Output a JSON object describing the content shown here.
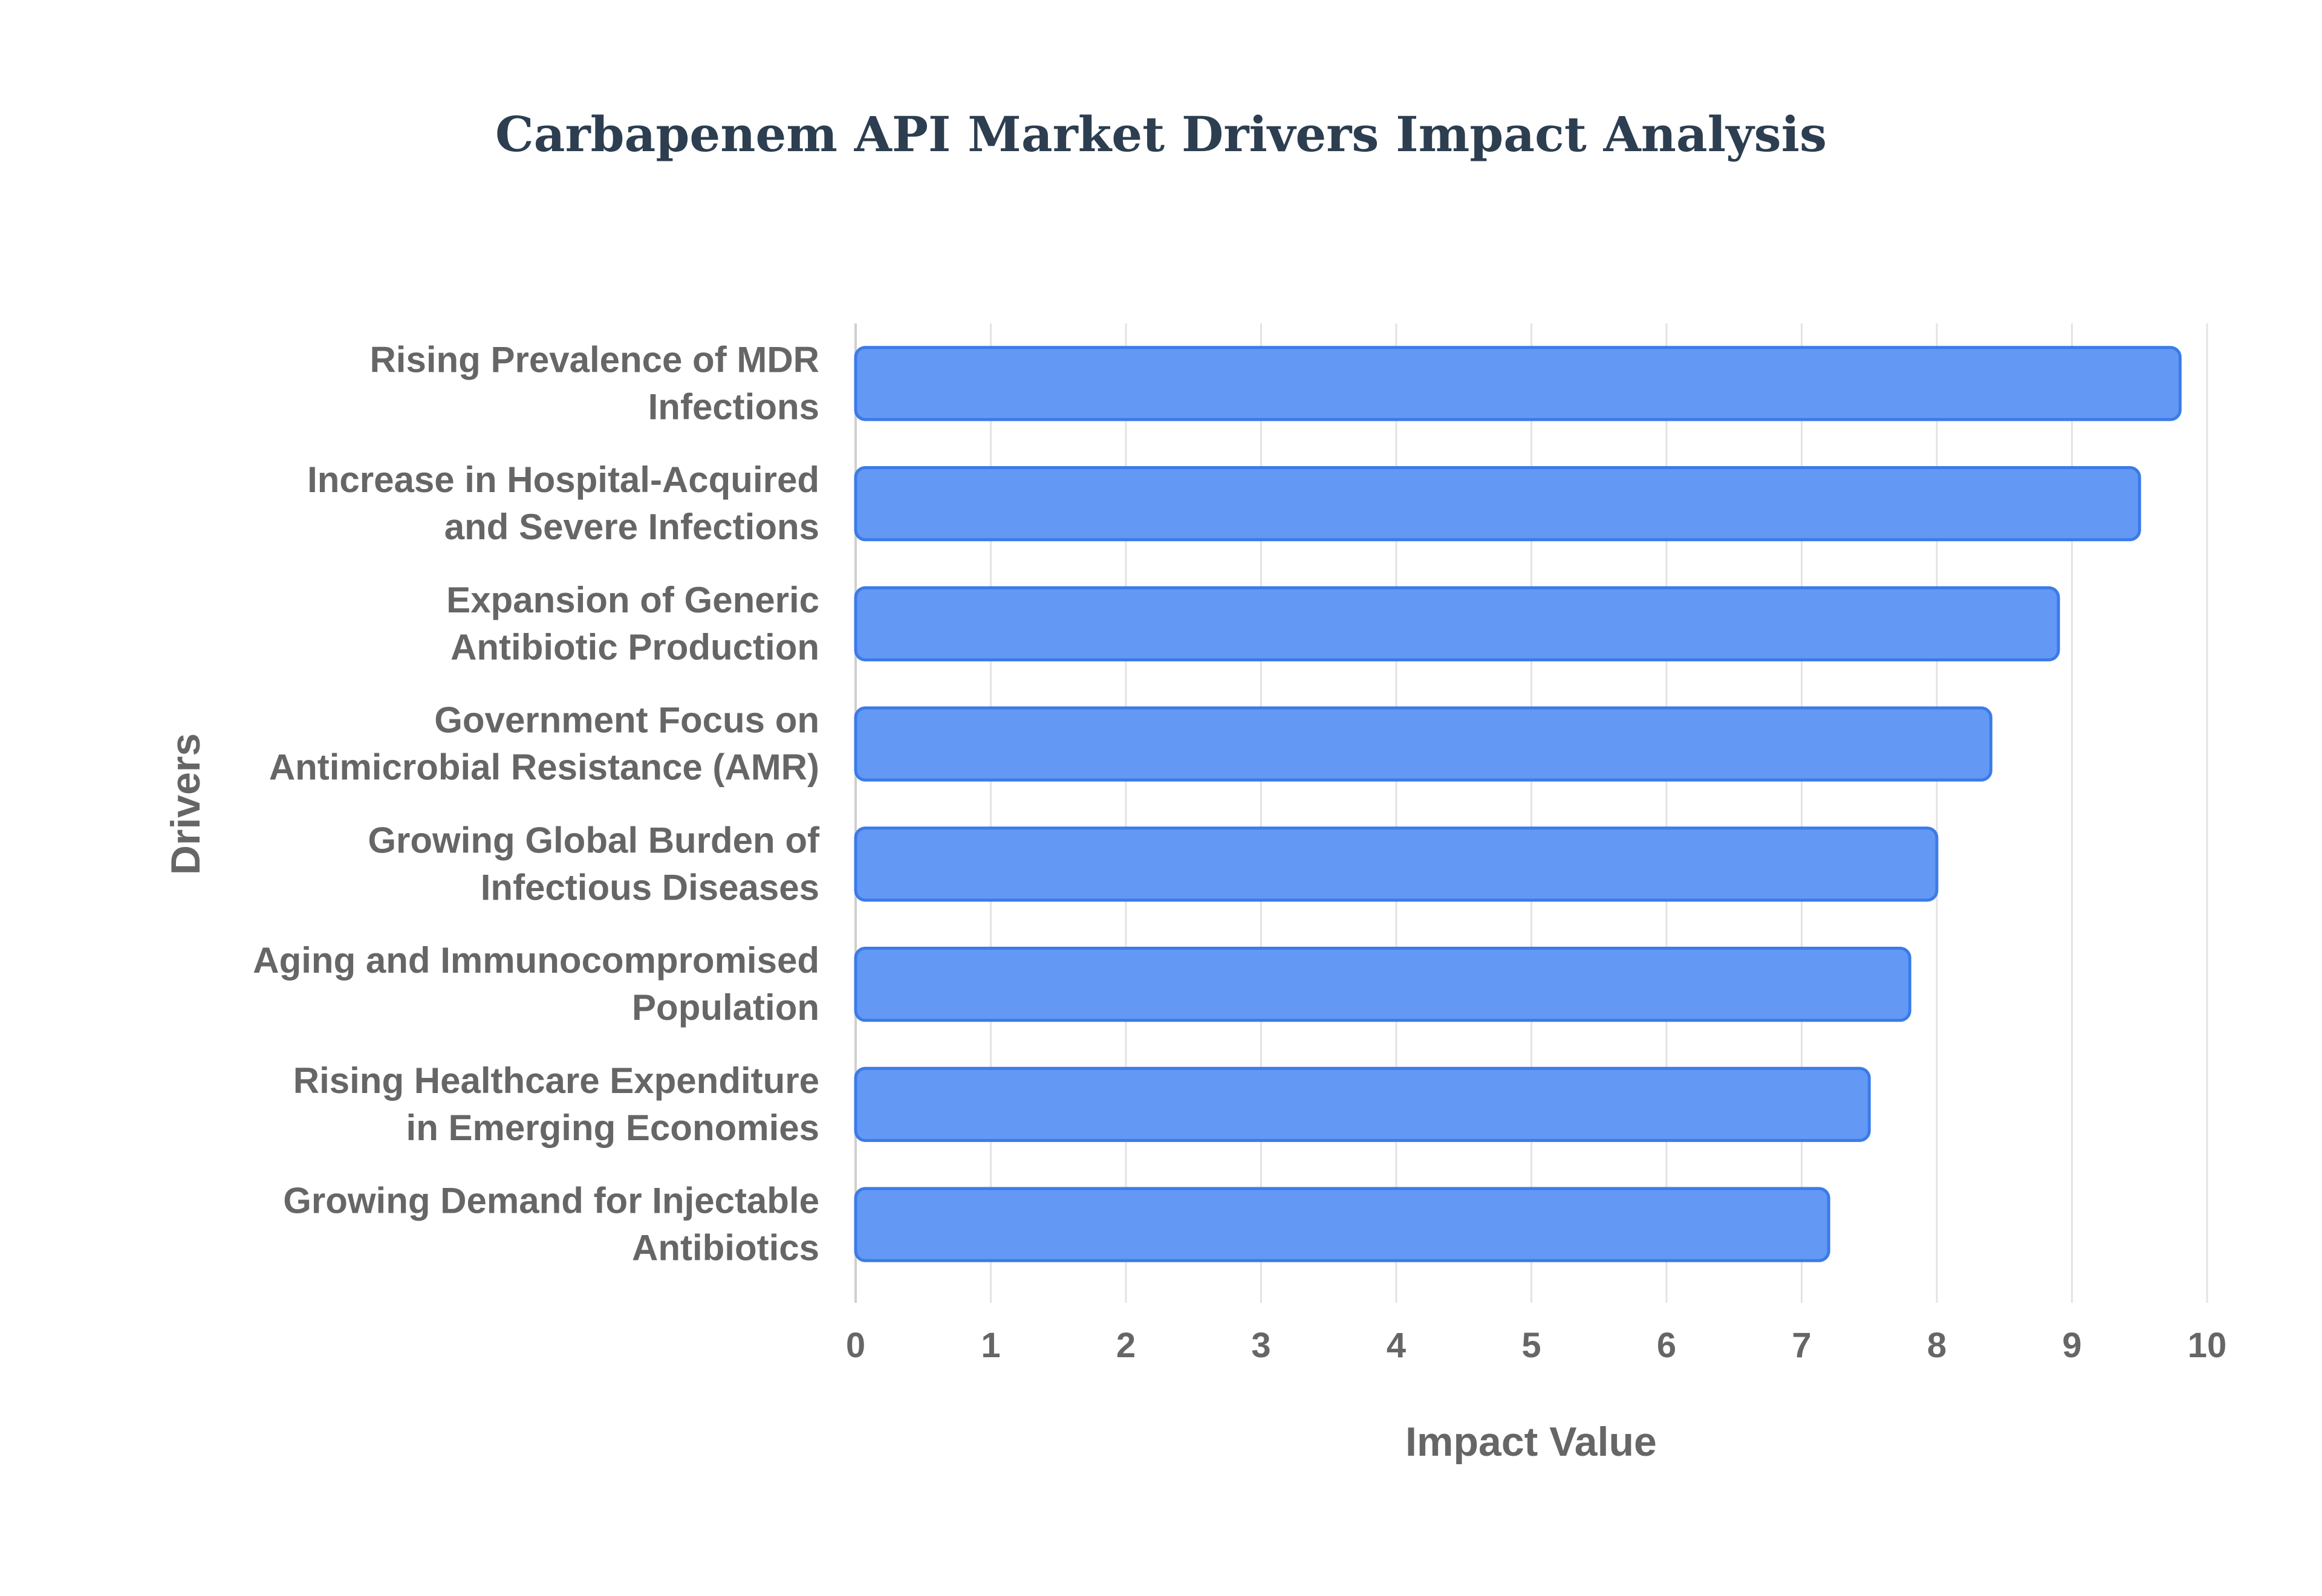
{
  "chart_data": {
    "type": "bar",
    "orientation": "horizontal",
    "title": "Carbapenem API Market Drivers Impact Analysis",
    "xlabel": "Impact Value",
    "ylabel": "Drivers",
    "xlim": [
      0,
      10
    ],
    "xticks": [
      "0",
      "1",
      "2",
      "3",
      "4",
      "5",
      "6",
      "7",
      "8",
      "9",
      "10"
    ],
    "grid": true,
    "categories": [
      [
        "Rising Prevalence of MDR",
        "Infections"
      ],
      [
        "Increase in Hospital-Acquired",
        "and Severe Infections"
      ],
      [
        "Expansion of Generic",
        "Antibiotic Production"
      ],
      [
        "Government Focus on",
        "Antimicrobial Resistance (AMR)"
      ],
      [
        "Growing Global Burden of",
        "Infectious Diseases"
      ],
      [
        "Aging and Immunocompromised",
        "Population"
      ],
      [
        "Rising Healthcare Expenditure",
        "in Emerging Economies"
      ],
      [
        "Growing Demand for Injectable",
        "Antibiotics"
      ]
    ],
    "values": [
      9.8,
      9.5,
      8.9,
      8.4,
      8.0,
      7.8,
      7.5,
      7.2
    ],
    "colors": {
      "bar_fill": "#6399f5",
      "bar_stroke": "#3b7be8",
      "title": "#2c3e50",
      "text": "#666666",
      "grid": "#e3e3e3"
    }
  }
}
